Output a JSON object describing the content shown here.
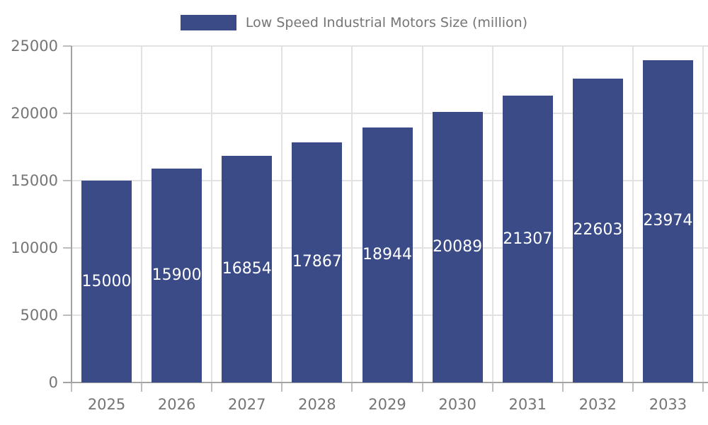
{
  "legend": {
    "label": "Low Speed Industrial Motors Size (million)"
  },
  "chart_data": {
    "type": "bar",
    "title": "",
    "series_name": "Low Speed Industrial Motors Size (million)",
    "categories": [
      "2025",
      "2026",
      "2027",
      "2028",
      "2029",
      "2030",
      "2031",
      "2032",
      "2033"
    ],
    "values": [
      15000,
      15900,
      16854,
      17867,
      18944,
      20089,
      21307,
      22603,
      23974
    ],
    "value_labels": [
      "15000",
      "15900",
      "16854",
      "17867",
      "18944",
      "20089",
      "21307",
      "22603",
      "23974"
    ],
    "xlabel": "",
    "ylabel": "",
    "ylim": [
      0,
      25000
    ],
    "yticks": [
      0,
      5000,
      10000,
      15000,
      20000,
      25000
    ],
    "ytick_labels": [
      "0",
      "5000",
      "10000",
      "15000",
      "20000",
      "25000"
    ],
    "grid": true,
    "legend_position": "top-center",
    "bar_labels_visible": true,
    "colors": {
      "bar": "#3A4B87",
      "grid": "#E2E2E2",
      "axis": "#A3A3A3",
      "tick": "#BDBDBD",
      "axis_text": "#757575",
      "value_label": "#FFFFFF",
      "background": "#FFFFFF"
    }
  }
}
